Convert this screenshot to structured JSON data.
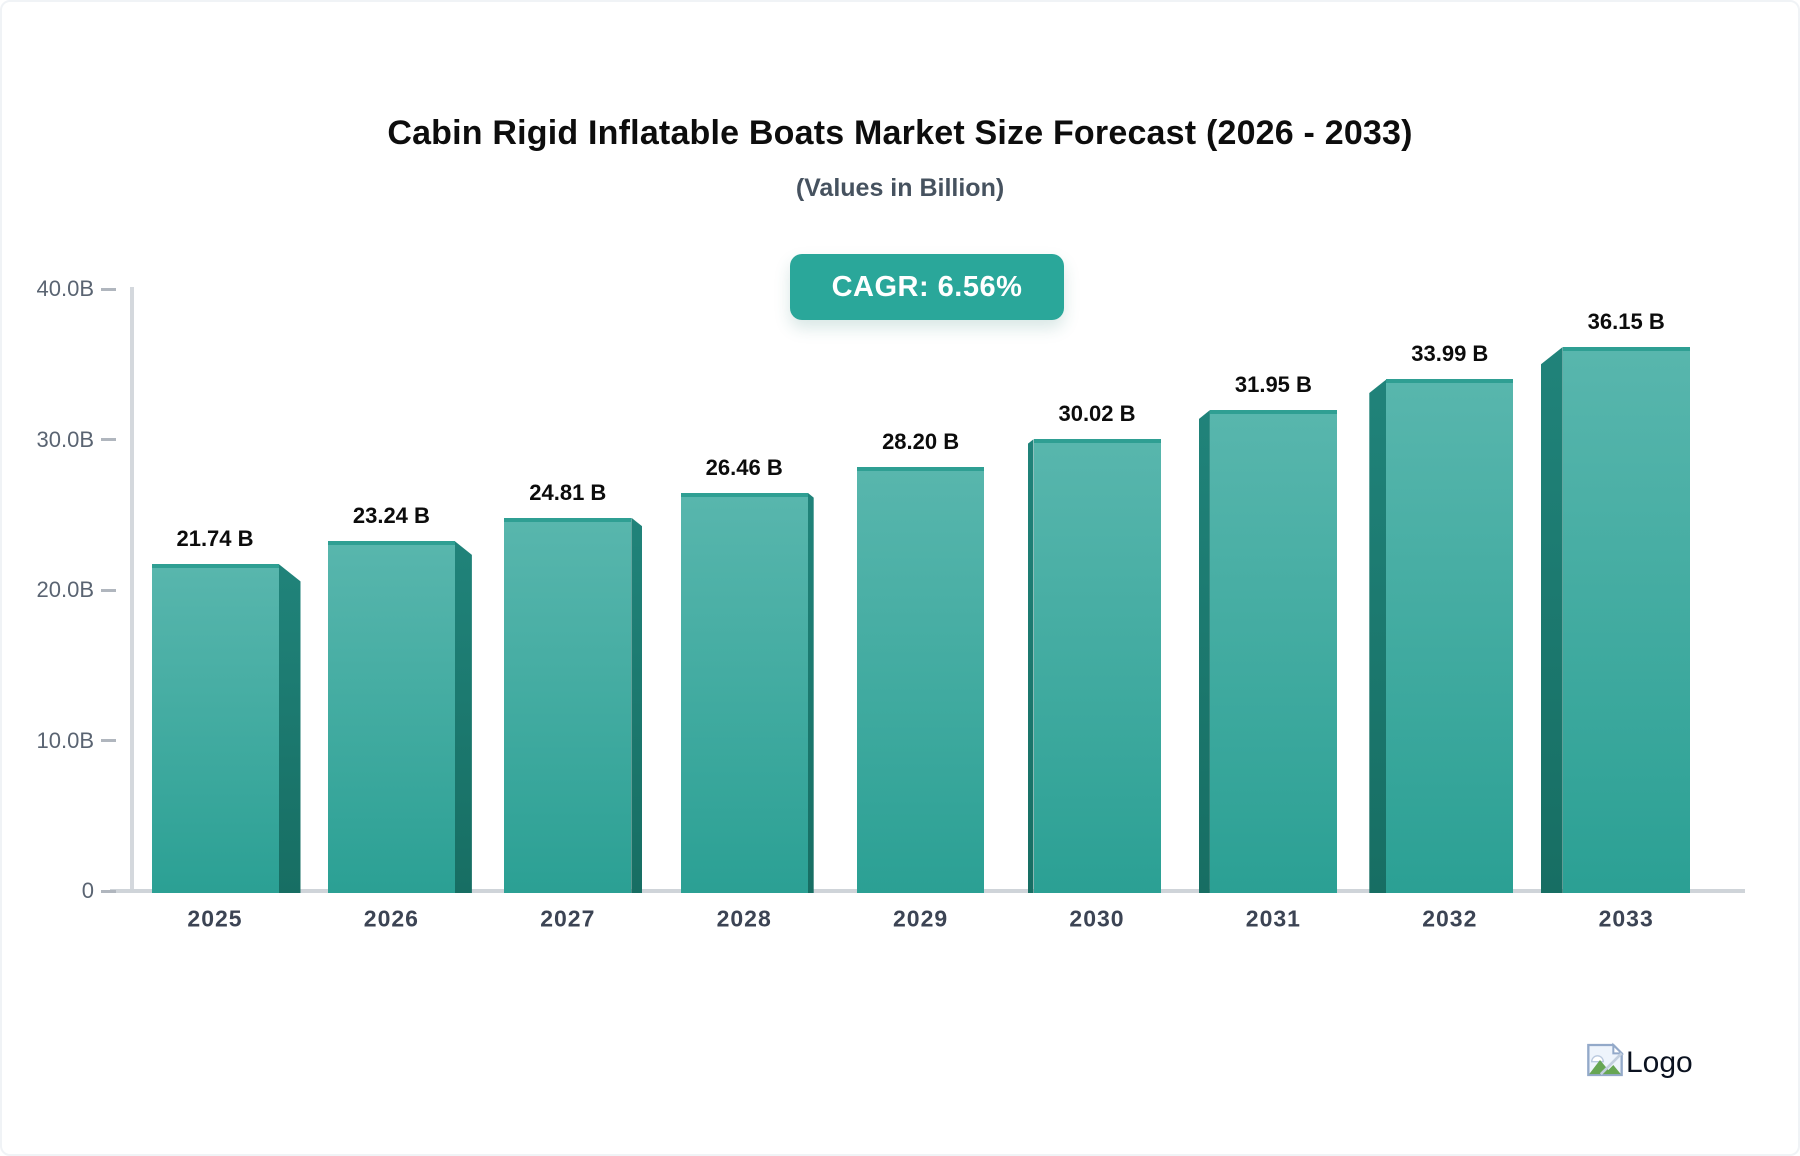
{
  "header": {
    "title": "Cabin Rigid Inflatable Boats Market Size Forecast (2026 - 2033)",
    "subtitle": "(Values in Billion)"
  },
  "badge": {
    "label": "CAGR: 6.56%"
  },
  "chart_data": {
    "type": "bar",
    "title": "Cabin Rigid Inflatable Boats Market Size Forecast (2026 - 2033)",
    "subtitle": "(Values in Billion)",
    "xlabel": "",
    "ylabel": "",
    "categories": [
      "2025",
      "2026",
      "2027",
      "2028",
      "2029",
      "2030",
      "2031",
      "2032",
      "2033"
    ],
    "values": [
      21.74,
      23.24,
      24.81,
      26.46,
      28.2,
      30.02,
      31.95,
      33.99,
      36.15
    ],
    "bar_labels": [
      "21.74 B",
      "23.24 B",
      "24.81 B",
      "26.46 B",
      "28.20 B",
      "30.02 B",
      "31.95 B",
      "33.99 B",
      "36.15 B"
    ],
    "ylim": [
      0,
      40
    ],
    "yticks": [
      {
        "value": 0,
        "label": "0"
      },
      {
        "value": 10,
        "label": "10.0B"
      },
      {
        "value": 20,
        "label": "20.0B"
      },
      {
        "value": 30,
        "label": "30.0B"
      },
      {
        "value": 40,
        "label": "40.0B"
      }
    ],
    "grid": false,
    "legend": false,
    "style": "pseudo-3d bars, perspective vanishing at center bar"
  },
  "colors": {
    "bar_face_top": "#58b6ad",
    "bar_face_bottom": "#2ba094",
    "bar_face_edge": "#2f9f93",
    "bar_side_top": "#20837a",
    "bar_side_bottom": "#176e63",
    "badge_bg": "#2aa79a",
    "axis_line": "#d4d8dd",
    "title_text": "#0d0d0d",
    "subtitle_text": "#46525f"
  },
  "logo": {
    "alt_text": "Logo",
    "icon": "broken-image-icon"
  }
}
